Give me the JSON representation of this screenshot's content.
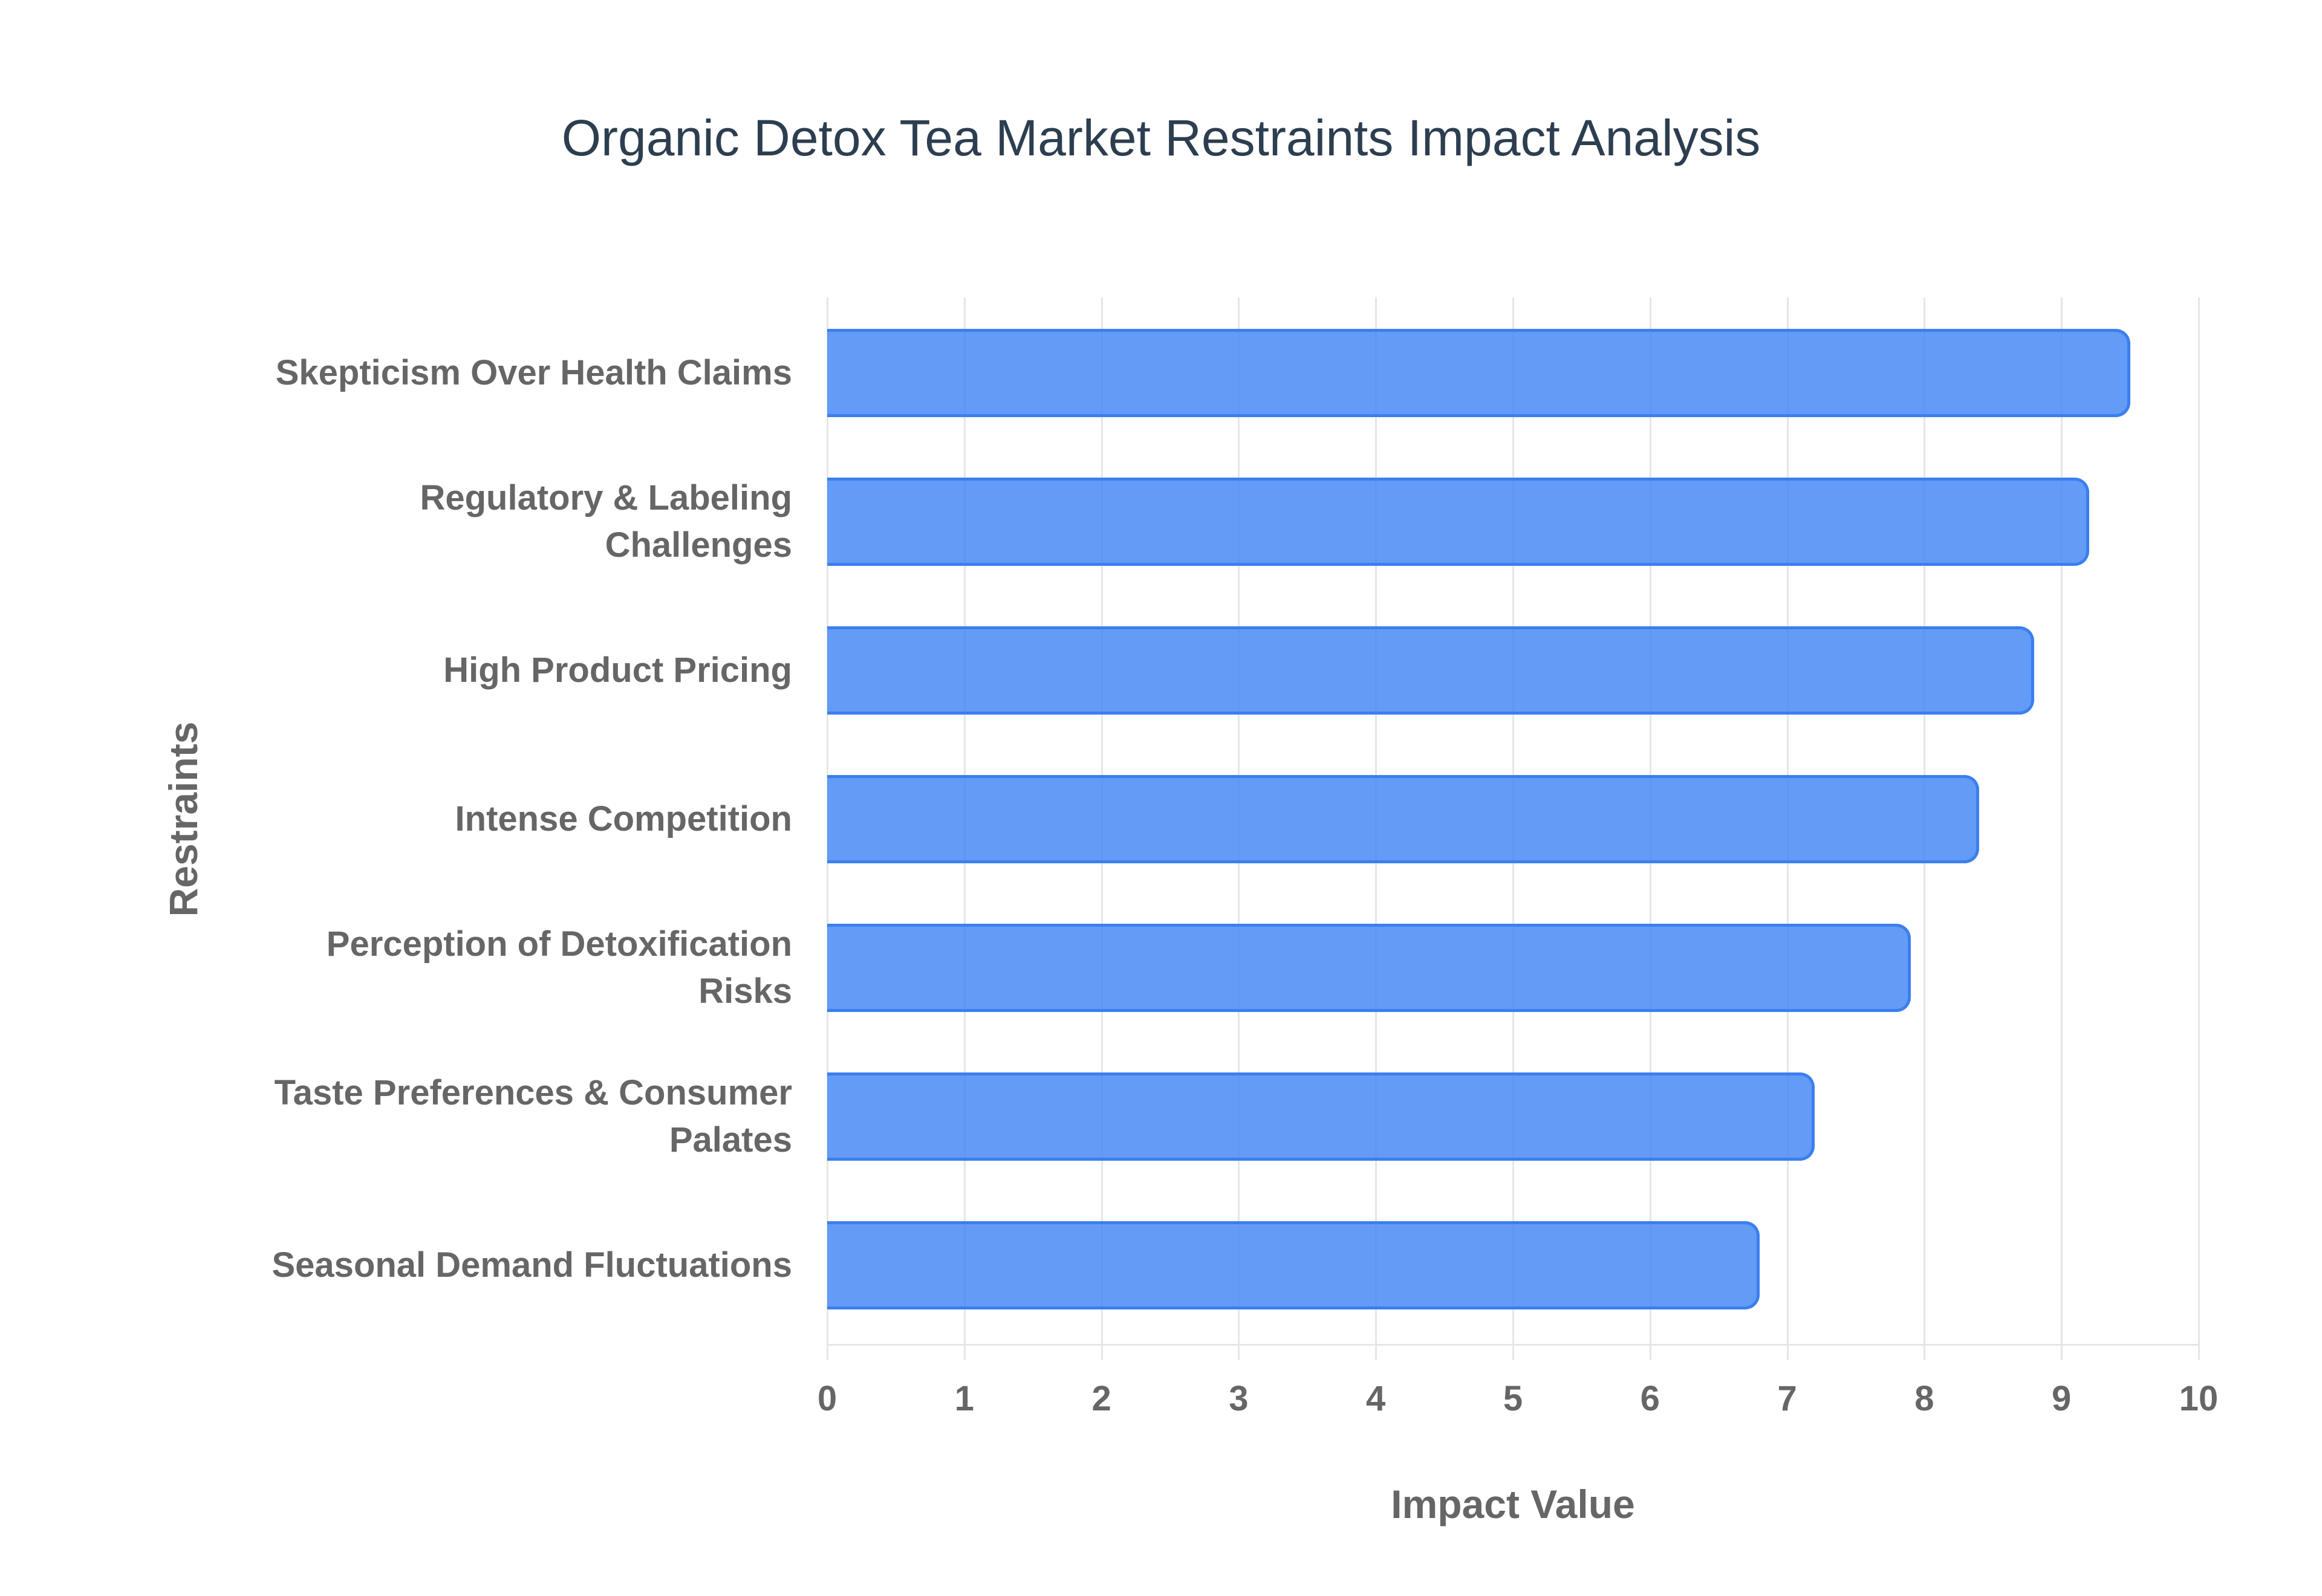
{
  "chart_data": {
    "type": "bar",
    "orientation": "horizontal",
    "title": "Organic Detox Tea Market Restraints Impact Analysis",
    "xlabel": "Impact Value",
    "ylabel": "Restraints",
    "xlim": [
      0,
      10
    ],
    "x_ticks": [
      "0",
      "1",
      "2",
      "3",
      "4",
      "5",
      "6",
      "7",
      "8",
      "9",
      "10"
    ],
    "grid": true,
    "legend": null,
    "categories": [
      "Skepticism Over Health Claims",
      "Regulatory & Labeling Challenges",
      "High Product Pricing",
      "Intense Competition",
      "Perception of Detoxification Risks",
      "Taste Preferences & Consumer Palates",
      "Seasonal Demand Fluctuations"
    ],
    "category_lines": [
      [
        "Skepticism Over Health Claims"
      ],
      [
        "Regulatory & Labeling",
        "Challenges"
      ],
      [
        "High Product Pricing"
      ],
      [
        "Intense Competition"
      ],
      [
        "Perception of Detoxification",
        "Risks"
      ],
      [
        "Taste Preferences & Consumer",
        "Palates"
      ],
      [
        "Seasonal Demand Fluctuations"
      ]
    ],
    "values": [
      9.5,
      9.2,
      8.8,
      8.4,
      7.9,
      7.2,
      6.8
    ],
    "colors": {
      "bar_fill": "#5f98f4",
      "bar_border": "#3b7ff0",
      "title": "#2c3e50",
      "axis_text": "#666666",
      "grid": "#e6e6e6"
    }
  }
}
